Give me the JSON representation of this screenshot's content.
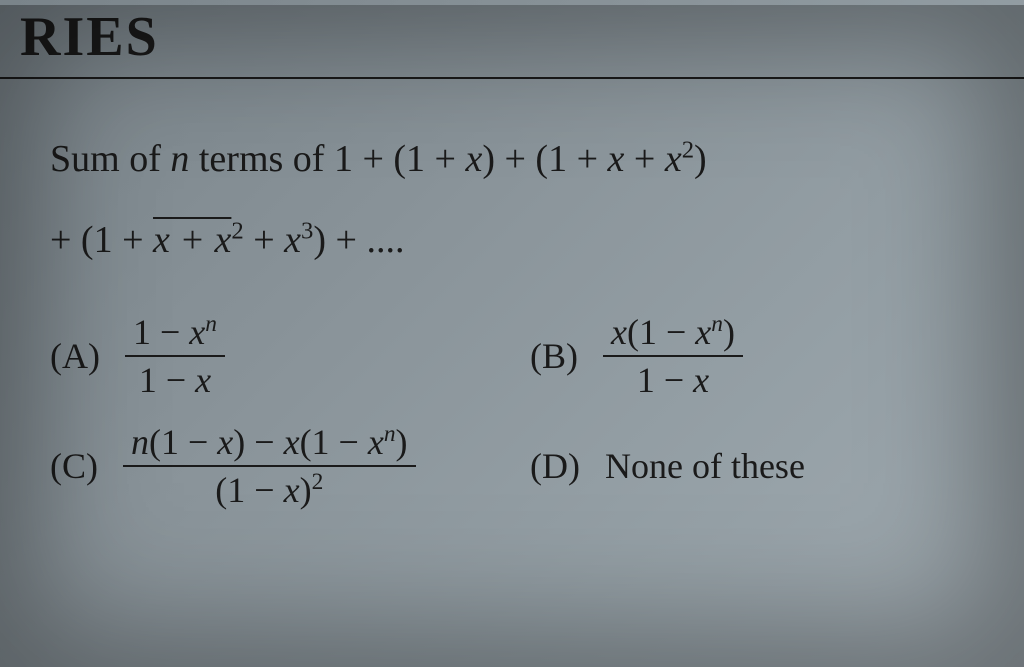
{
  "header": {
    "title": "RIES"
  },
  "question": {
    "prefix": "Sum of ",
    "nvar": "n",
    "middle": " terms of ",
    "expr1_a": "1 + (1 + ",
    "expr1_x1": "x",
    "expr1_b": ") + (1 + ",
    "expr1_x2": "x",
    "expr1_c": " + ",
    "expr1_x3": "x",
    "expr1_sup2": "2",
    "expr1_d": ")",
    "line2_a": "+ (1 + ",
    "line2_over": "x + x",
    "line2_sup2": "2",
    "line2_b": " + ",
    "line2_x": "x",
    "line2_sup3": "3",
    "line2_c": ") + ...."
  },
  "options": {
    "A": {
      "label": "(A)",
      "num_a": "1 − ",
      "num_x": "x",
      "num_sup": "n",
      "den_a": "1 − ",
      "den_x": "x"
    },
    "B": {
      "label": "(B)",
      "num_x1": "x",
      "num_a": "(1 − ",
      "num_x2": "x",
      "num_sup": "n",
      "num_b": ")",
      "den_a": "1 − ",
      "den_x": "x"
    },
    "C": {
      "label": "(C)",
      "num_n": "n",
      "num_a": "(1 − ",
      "num_x1": "x",
      "num_b": ") − ",
      "num_x2": "x",
      "num_c": "(1 − ",
      "num_x3": "x",
      "num_sup": "n",
      "num_d": ")",
      "den_a": "(1 − ",
      "den_x": "x",
      "den_b": ")",
      "den_sup": "2"
    },
    "D": {
      "label": "(D)",
      "text": "None of these"
    }
  },
  "styling": {
    "background_gradient": [
      "#7a848a",
      "#8a949a",
      "#95a0a6",
      "#a0aab0"
    ],
    "text_color": "#1a1a1a",
    "title_fontsize": 56,
    "body_fontsize": 38,
    "option_fontsize": 36,
    "font_family": "Times New Roman",
    "line_color": "#1a1a1a",
    "line_width": 2
  }
}
